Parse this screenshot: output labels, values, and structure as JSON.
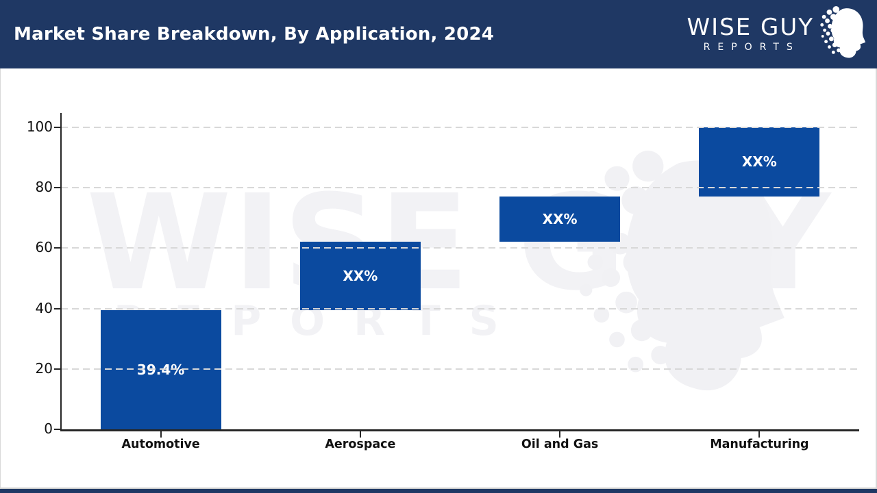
{
  "header": {
    "title": "Market Share Breakdown, By Application, 2024",
    "bg_color": "#1f3864"
  },
  "logo": {
    "line1": "WISE GUY",
    "line2": "REPORTS"
  },
  "watermark": {
    "line1": "WISE GUY",
    "line2": "REPORTS"
  },
  "chart_data": {
    "type": "bar",
    "subtype": "waterfall",
    "title": "Market Share Breakdown, By Application, 2024",
    "categories": [
      "Automotive",
      "Aerospace",
      "Oil and Gas",
      "Manufacturing"
    ],
    "segments": [
      {
        "category": "Automotive",
        "start": 0,
        "end": 39.4,
        "label": "39.4%"
      },
      {
        "category": "Aerospace",
        "start": 39.4,
        "end": 62.1,
        "label": "XX%"
      },
      {
        "category": "Oil and Gas",
        "start": 62.1,
        "end": 77.2,
        "label": "XX%"
      },
      {
        "category": "Manufacturing",
        "start": 77.2,
        "end": 100,
        "label": "XX%"
      }
    ],
    "ylim": [
      0,
      100
    ],
    "yticks": [
      0,
      20,
      40,
      60,
      80,
      100
    ],
    "xlabel": "",
    "ylabel": "",
    "grid": "horizontal-dashed-on-top",
    "legend": "none",
    "bar_color": "#0b4a9f",
    "bar_label_color": "#ffffff",
    "axis_color": "#262626",
    "grid_color": "#d8d8d8",
    "tick_label_color": "#111111"
  },
  "footer": {
    "bg_color": "#1f3864"
  }
}
